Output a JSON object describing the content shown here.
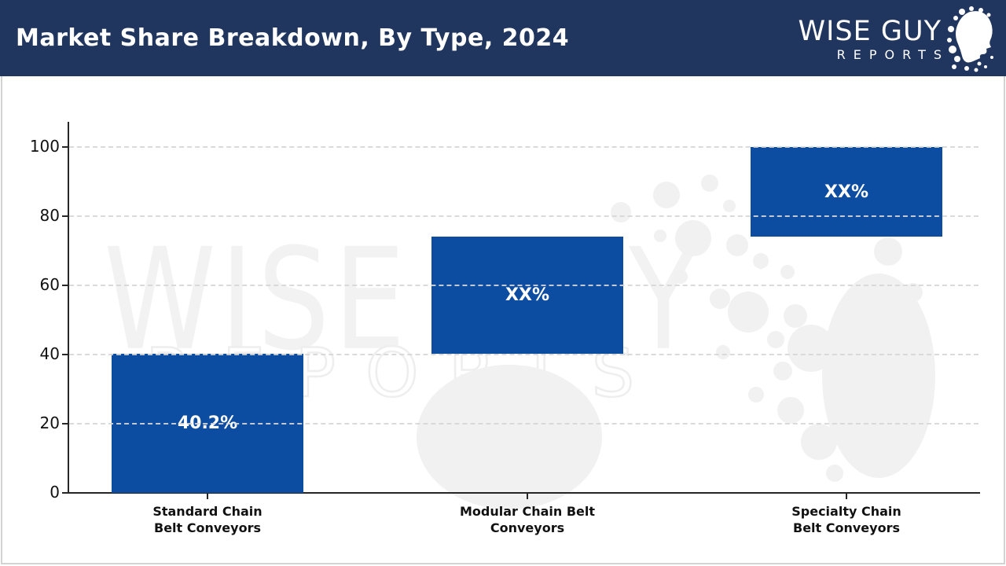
{
  "header": {
    "title": "Market Share Breakdown, By Type, 2024",
    "logo": {
      "line1": "WISE GUY",
      "line2": "REPORTS"
    }
  },
  "watermark": {
    "line1": "WISE GUY",
    "line2": "REPORTS"
  },
  "chart_data": {
    "type": "bar",
    "subtype": "waterfall",
    "title": "Market Share Breakdown, By Type, 2024",
    "categories": [
      "Standard Chain\nBelt Conveyors",
      "Modular Chain Belt\nConveyors",
      "Specialty Chain\nBelt Conveyors"
    ],
    "bars": [
      {
        "category": "Standard Chain Belt Conveyors",
        "start": 0,
        "end": 40.2,
        "label": "40.2%"
      },
      {
        "category": "Modular Chain Belt Conveyors",
        "start": 40.2,
        "end": 74,
        "label": "XX%"
      },
      {
        "category": "Specialty Chain Belt Conveyors",
        "start": 74,
        "end": 100,
        "label": "XX%"
      }
    ],
    "xlabel": "",
    "ylabel": "",
    "ylim": [
      0,
      100
    ],
    "yticks": [
      0,
      20,
      40,
      60,
      80,
      100
    ],
    "grid": "horizontal dashed, drawn above bars",
    "legend": "none",
    "bar_color": "#0c4da2",
    "bar_label_color": "#ffffff"
  },
  "colors": {
    "header_bg": "#21365e",
    "bar": "#0c4da2",
    "axis": "#262626",
    "gridline": "#d7d7d7",
    "watermark": "#f2f2f2",
    "frame_border": "#d3d3d3"
  }
}
